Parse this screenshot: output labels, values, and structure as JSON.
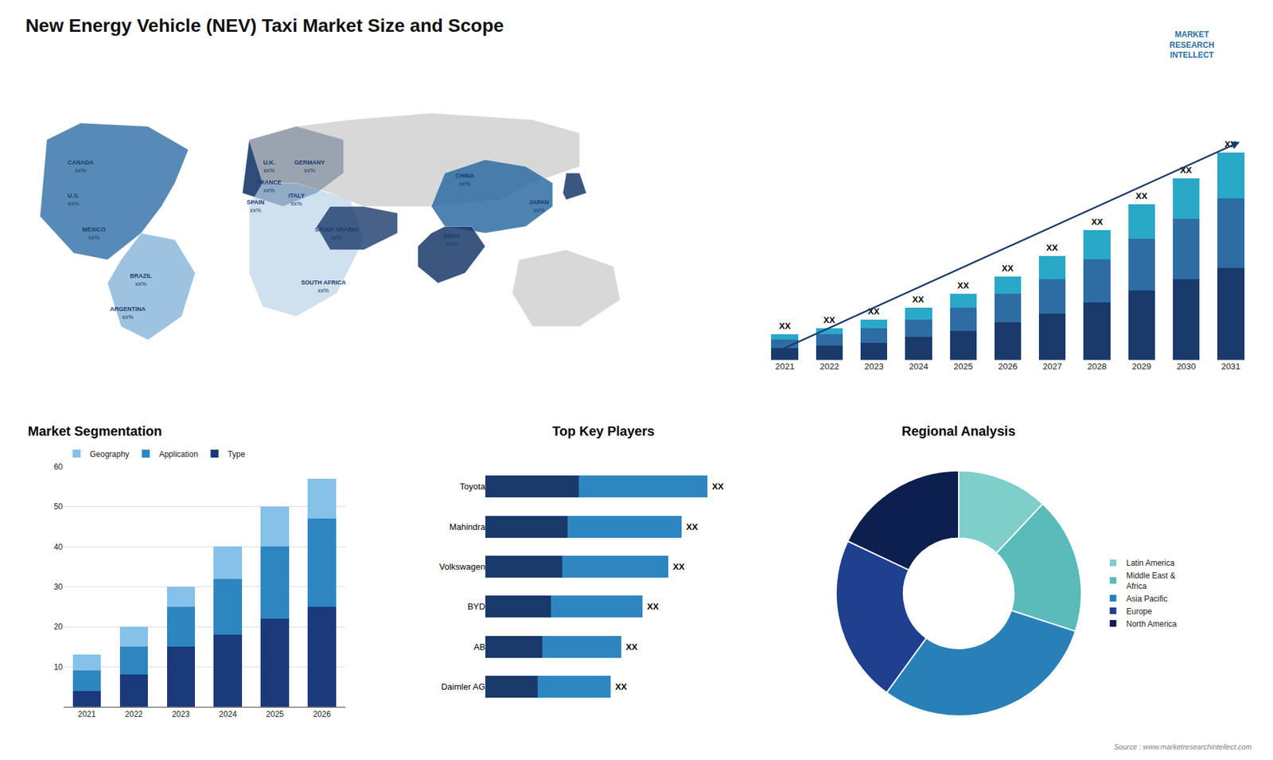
{
  "title": "New Energy Vehicle (NEV) Taxi Market Size and Scope",
  "annotations": [
    "MARKET\nRESEARCH\nINTELLECT",
    "Source : www.marketresearchintellect.com"
  ],
  "chart_data": [
    {
      "type": "map",
      "annotations": [
        "CANADA\nxx%",
        "U.S.\nxx%",
        "MEXICO\nxx%",
        "BRAZIL\nxx%",
        "ARGENTINA\nxx%",
        "U.K.\nxx%",
        "FRANCE\nxx%",
        "SPAIN\nxx%",
        "GERMANY\nxx%",
        "ITALY\nxx%",
        "SAUDI ARABIA\nxx%",
        "SOUTH AFRICA\nxx%",
        "CHINA\nxx%",
        "JAPAN\nxx%",
        "INDIA\nxx%"
      ]
    },
    {
      "type": "bar",
      "categories": [
        "2021",
        "2022",
        "2023",
        "2024",
        "2025",
        "2026",
        "2027",
        "2028",
        "2029",
        "2030",
        "2031"
      ],
      "series": [
        {
          "color": "#1a3a6b",
          "values": [
            4,
            5,
            6,
            8,
            10,
            13,
            16,
            20,
            24,
            28,
            32
          ]
        },
        {
          "color": "#2e6da4",
          "values": [
            3,
            4,
            5,
            6,
            8,
            10,
            12,
            15,
            18,
            21,
            24
          ]
        },
        {
          "color": "#29a8c8",
          "values": [
            2,
            2,
            3,
            4,
            5,
            6,
            8,
            10,
            12,
            14,
            16
          ]
        }
      ],
      "stacked": true,
      "ylim": [
        0,
        97.2
      ],
      "tick_labels": "x",
      "grid": false,
      "annotations": [
        "XX",
        "XX",
        "XX",
        "XX",
        "XX",
        "XX",
        "XX",
        "XX",
        "XX",
        "XX",
        "XX"
      ]
    },
    {
      "type": "bar",
      "title": "Market Segmentation",
      "categories": [
        "2021",
        "2022",
        "2023",
        "2024",
        "2025",
        "2026"
      ],
      "series": [
        {
          "name": "Type",
          "color": "#1a3a7c",
          "values": [
            4,
            8,
            15,
            18,
            22,
            25
          ]
        },
        {
          "name": "Application",
          "color": "#2e86c1",
          "values": [
            5,
            7,
            10,
            14,
            18,
            22
          ]
        },
        {
          "name": "Geography",
          "color": "#85c1e9",
          "values": [
            4,
            5,
            5,
            8,
            10,
            10
          ]
        }
      ],
      "stacked": true,
      "ylim": [
        0,
        60
      ],
      "yticks": [
        10,
        20,
        30,
        40,
        50,
        60
      ],
      "grid": true,
      "legend": "top"
    },
    {
      "type": "bar",
      "title": "Top Key Players",
      "orientation": "horizontal",
      "categories": [
        "Toyota",
        "Mahindra",
        "Volkswagen",
        "BYD",
        "AB",
        "Daimler AG"
      ],
      "series": [
        {
          "color": "#1a3a6b",
          "values": [
            0.357,
            0.315,
            0.294,
            0.252,
            0.2184,
            0.2016
          ]
        },
        {
          "color": "#2e86c1",
          "values": [
            0.493,
            0.435,
            0.406,
            0.348,
            0.3016,
            0.2784
          ]
        }
      ],
      "stacked": true,
      "xlim": [
        -0.3,
        1.2
      ],
      "tick_labels": "y",
      "grid": false,
      "annotations": [
        "XX",
        "XX",
        "XX",
        "XX",
        "XX",
        "XX"
      ]
    },
    {
      "type": "donut",
      "title": "Regional Analysis",
      "categories": [
        "Latin America",
        "Middle East &\nAfrica",
        "Asia Pacific",
        "Europe",
        "North America"
      ],
      "values": [
        12,
        18,
        30,
        22,
        18
      ],
      "colors": [
        "#7ececa",
        "#5bbaba",
        "#2980b9",
        "#1f3f8f",
        "#0d1f4f"
      ],
      "legend": "right"
    }
  ]
}
